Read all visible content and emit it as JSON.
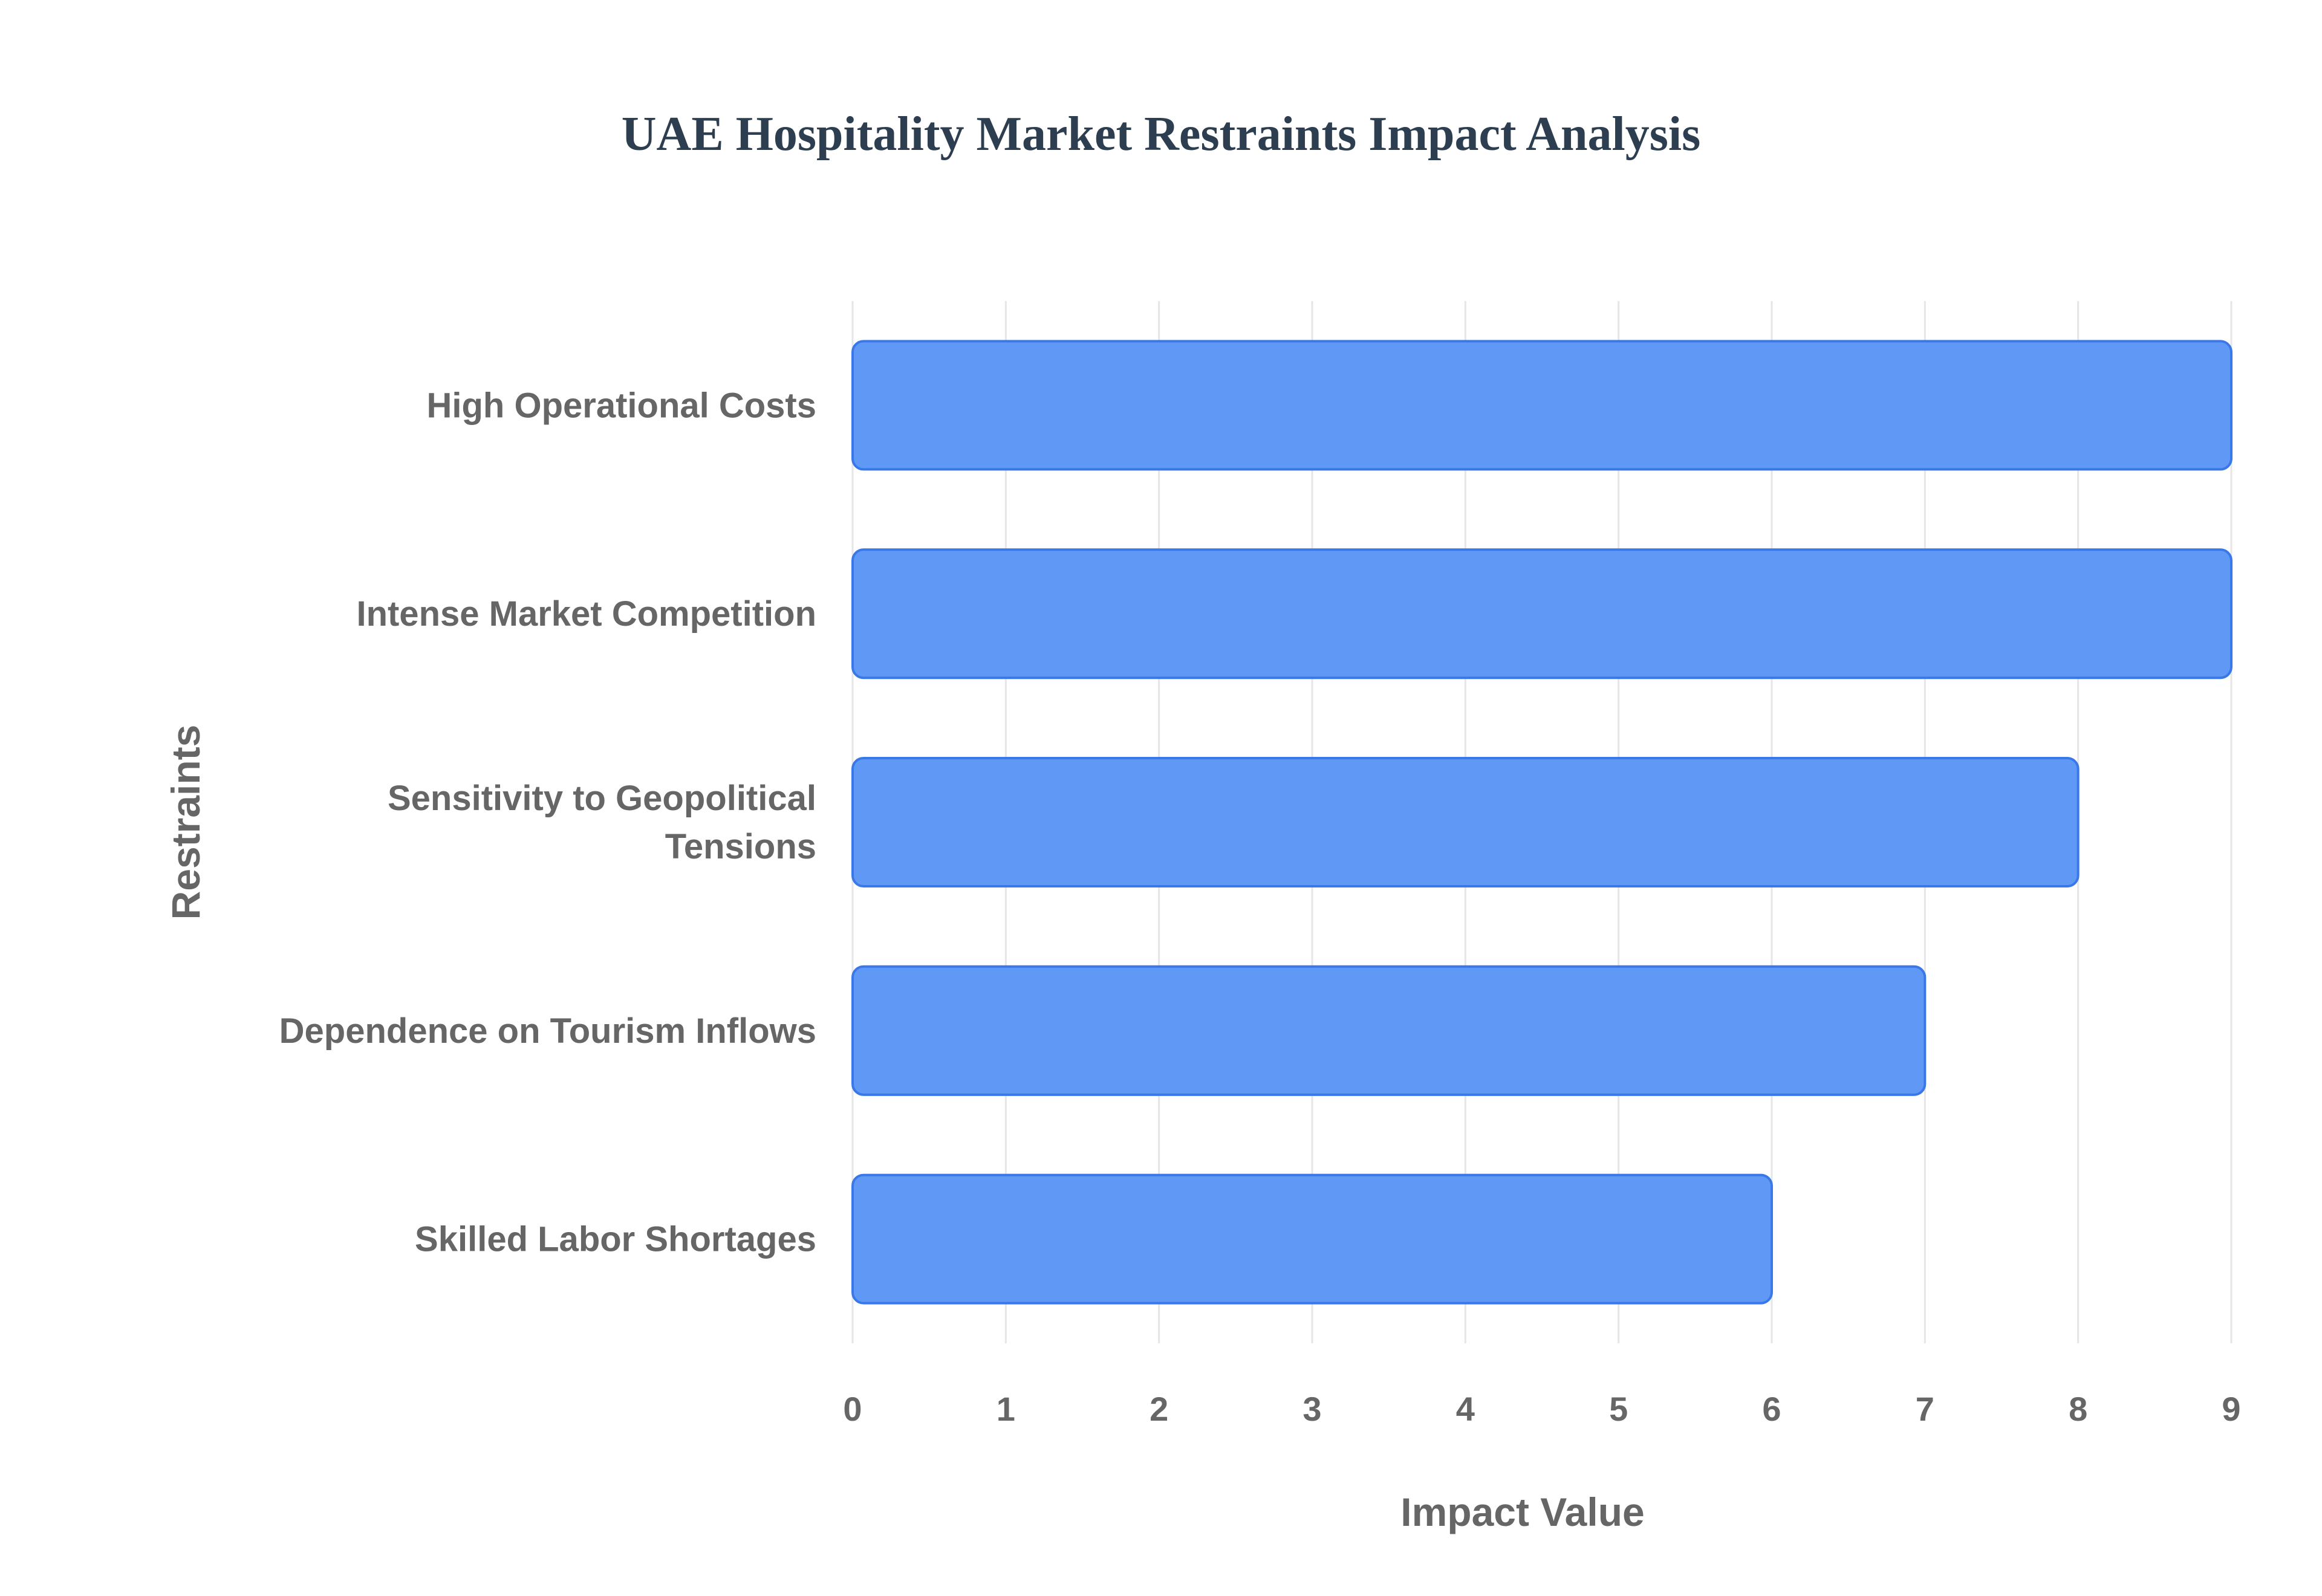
{
  "colors": {
    "bar_fill": "#6099f5",
    "bar_stroke": "#3a78ea",
    "grid": "#e6e6e6",
    "axis_text": "#666666",
    "title": "#2c3e50"
  },
  "chart_data": {
    "type": "bar",
    "orientation": "horizontal",
    "title": "UAE Hospitality Market Restraints Impact Analysis",
    "xlabel": "Impact Value",
    "ylabel": "Restraints",
    "categories": [
      [
        "High Operational Costs"
      ],
      [
        "Intense Market Competition"
      ],
      [
        "Sensitivity to Geopolitical",
        "Tensions"
      ],
      [
        "Dependence on Tourism Inflows"
      ],
      [
        "Skilled Labor Shortages"
      ]
    ],
    "values": [
      9,
      9,
      8,
      7,
      6
    ],
    "xlim": [
      0,
      9
    ],
    "xticks": [
      "0",
      "1",
      "2",
      "3",
      "4",
      "5",
      "6",
      "7",
      "8",
      "9"
    ],
    "grid": true,
    "legend": "none"
  }
}
